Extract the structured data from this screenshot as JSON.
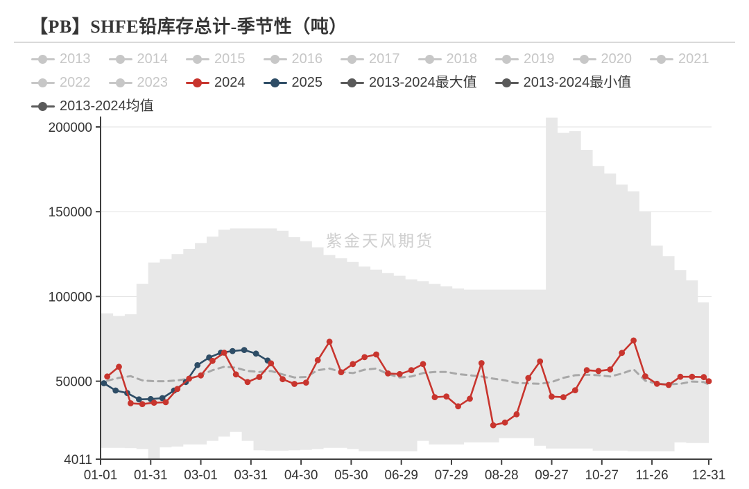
{
  "title": "【PB】SHFE铅库存总计-季节性（吨）",
  "watermark": "紫金天风期货",
  "colors": {
    "series_2024": "#c8352e",
    "series_2025": "#2e4d66",
    "band_fill": "#e8e8e8",
    "mean_line": "#a8a8a8",
    "legend_gray": "#c7c7c7",
    "legend_dark_marker": "#5a5a5a",
    "legend_dark_text": "#3c3c3c",
    "axis": "#3f3f3f",
    "axis_text": "#333333",
    "gridline": "#e2e2e2",
    "title_text": "#363636",
    "divider": "#d9d9d9",
    "watermark_text": "#cfcfcf"
  },
  "legend": {
    "rows": [
      [
        {
          "label": "2013",
          "type": "gray"
        },
        {
          "label": "2014",
          "type": "gray"
        },
        {
          "label": "2015",
          "type": "gray"
        },
        {
          "label": "2016",
          "type": "gray"
        },
        {
          "label": "2017",
          "type": "gray"
        },
        {
          "label": "2018",
          "type": "gray"
        },
        {
          "label": "2019",
          "type": "gray"
        },
        {
          "label": "2020",
          "type": "gray"
        },
        {
          "label": "2021",
          "type": "gray"
        }
      ],
      [
        {
          "label": "2022",
          "type": "gray"
        },
        {
          "label": "2023",
          "type": "gray"
        },
        {
          "label": "2024",
          "type": "red"
        },
        {
          "label": "2025",
          "type": "blue"
        },
        {
          "label": "2013-2024最大值",
          "type": "dark"
        },
        {
          "label": "2013-2024最小值",
          "type": "dark"
        }
      ],
      [
        {
          "label": "2013-2024均值",
          "type": "dark"
        }
      ]
    ]
  },
  "chart_data": {
    "type": "line",
    "title": "【PB】SHFE铅库存总计-季节性（吨）",
    "xlabel": "",
    "ylabel": "吨",
    "grid": true,
    "legend_position": "top",
    "y_axis": {
      "min": 4011,
      "max": 200000,
      "tick_values": [
        4011,
        50000,
        100000,
        150000,
        200000
      ],
      "tick_labels": [
        "4011",
        "50000",
        "100000",
        "150000",
        "200000"
      ]
    },
    "x_axis": {
      "range_days": [
        0,
        364
      ],
      "tick_days": [
        0,
        30,
        60,
        90,
        120,
        150,
        180,
        210,
        240,
        270,
        300,
        330,
        364
      ],
      "tick_labels": [
        "01-01",
        "01-31",
        "03-01",
        "03-31",
        "04-30",
        "05-30",
        "06-29",
        "07-29",
        "08-28",
        "09-27",
        "10-27",
        "11-26",
        "12-31"
      ]
    },
    "week_days": [
      4,
      11,
      18,
      25,
      32,
      39,
      46,
      53,
      60,
      67,
      74,
      81,
      88,
      95,
      102,
      109,
      116,
      123,
      130,
      137,
      144,
      151,
      158,
      165,
      172,
      179,
      186,
      193,
      200,
      207,
      214,
      221,
      228,
      235,
      242,
      249,
      256,
      263,
      270,
      277,
      284,
      291,
      298,
      305,
      312,
      319,
      326,
      333,
      340,
      347,
      354,
      361,
      364
    ],
    "band": {
      "name_max": "2013-2024最大值",
      "name_min": "2013-2024最小值",
      "max": [
        90000,
        88500,
        89500,
        107500,
        120000,
        122000,
        125000,
        128000,
        131500,
        135300,
        139400,
        140100,
        140100,
        140100,
        140100,
        138700,
        135000,
        132600,
        129000,
        124400,
        122600,
        120300,
        117600,
        115800,
        113800,
        112200,
        110100,
        109000,
        107400,
        106000,
        104700,
        104000,
        104000,
        104000,
        104000,
        104000,
        104000,
        104000,
        205500,
        196500,
        197500,
        186500,
        177000,
        172500,
        166000,
        162000,
        150300,
        130000,
        123800,
        115600,
        109500,
        96500,
        96500
      ],
      "min": [
        10700,
        10700,
        10500,
        10000,
        4011,
        11000,
        11500,
        12700,
        12700,
        14800,
        17300,
        20100,
        14800,
        9200,
        9000,
        9000,
        9200,
        9500,
        10000,
        10700,
        10700,
        10000,
        8700,
        8700,
        8700,
        8700,
        8700,
        14800,
        12700,
        12700,
        12700,
        13900,
        13900,
        13900,
        16400,
        16400,
        16400,
        11900,
        10300,
        10300,
        10300,
        10300,
        9000,
        9000,
        9000,
        8700,
        8700,
        8700,
        8700,
        13900,
        13500,
        13500,
        13500
      ]
    },
    "series": [
      {
        "name": "2013-2024均值",
        "style": "dashed",
        "markers": false,
        "values": [
          50300,
          52000,
          53000,
          50500,
          50000,
          50000,
          50500,
          51500,
          53500,
          56500,
          58500,
          58000,
          56000,
          55500,
          56000,
          54000,
          52200,
          52500,
          56500,
          57500,
          55500,
          54800,
          56800,
          57500,
          54200,
          52200,
          52800,
          54800,
          55500,
          55500,
          54200,
          53500,
          52800,
          51500,
          50500,
          49000,
          48700,
          48500,
          49500,
          52000,
          53500,
          53800,
          53500,
          52800,
          54500,
          57000,
          50300,
          48500,
          48200,
          48500,
          49800,
          49500,
          48000
        ]
      },
      {
        "name": "2024",
        "style": "solid",
        "markers": true,
        "values": [
          52800,
          58500,
          37000,
          36500,
          37300,
          37600,
          45400,
          51500,
          53400,
          62000,
          66800,
          54000,
          49500,
          52500,
          60500,
          51200,
          48400,
          49200,
          62400,
          73300,
          55300,
          60100,
          64200,
          65800,
          54600,
          54200,
          56500,
          60100,
          40600,
          41000,
          35200,
          39700,
          60700,
          24000,
          25600,
          30500,
          51900,
          61700,
          40900,
          40600,
          44700,
          56500,
          56000,
          56900,
          66700,
          74000,
          52900,
          48500,
          47800,
          52600,
          52600,
          52400,
          50000
        ]
      },
      {
        "name": "2025",
        "style": "solid",
        "markers": true,
        "days": [
          2,
          9,
          16,
          23,
          30,
          37,
          44,
          51,
          58,
          65,
          72,
          79,
          86,
          93,
          100
        ],
        "values": [
          48800,
          44500,
          43000,
          39300,
          39500,
          40000,
          44500,
          49500,
          59500,
          64000,
          66800,
          67800,
          68400,
          66300,
          62200
        ]
      }
    ]
  }
}
